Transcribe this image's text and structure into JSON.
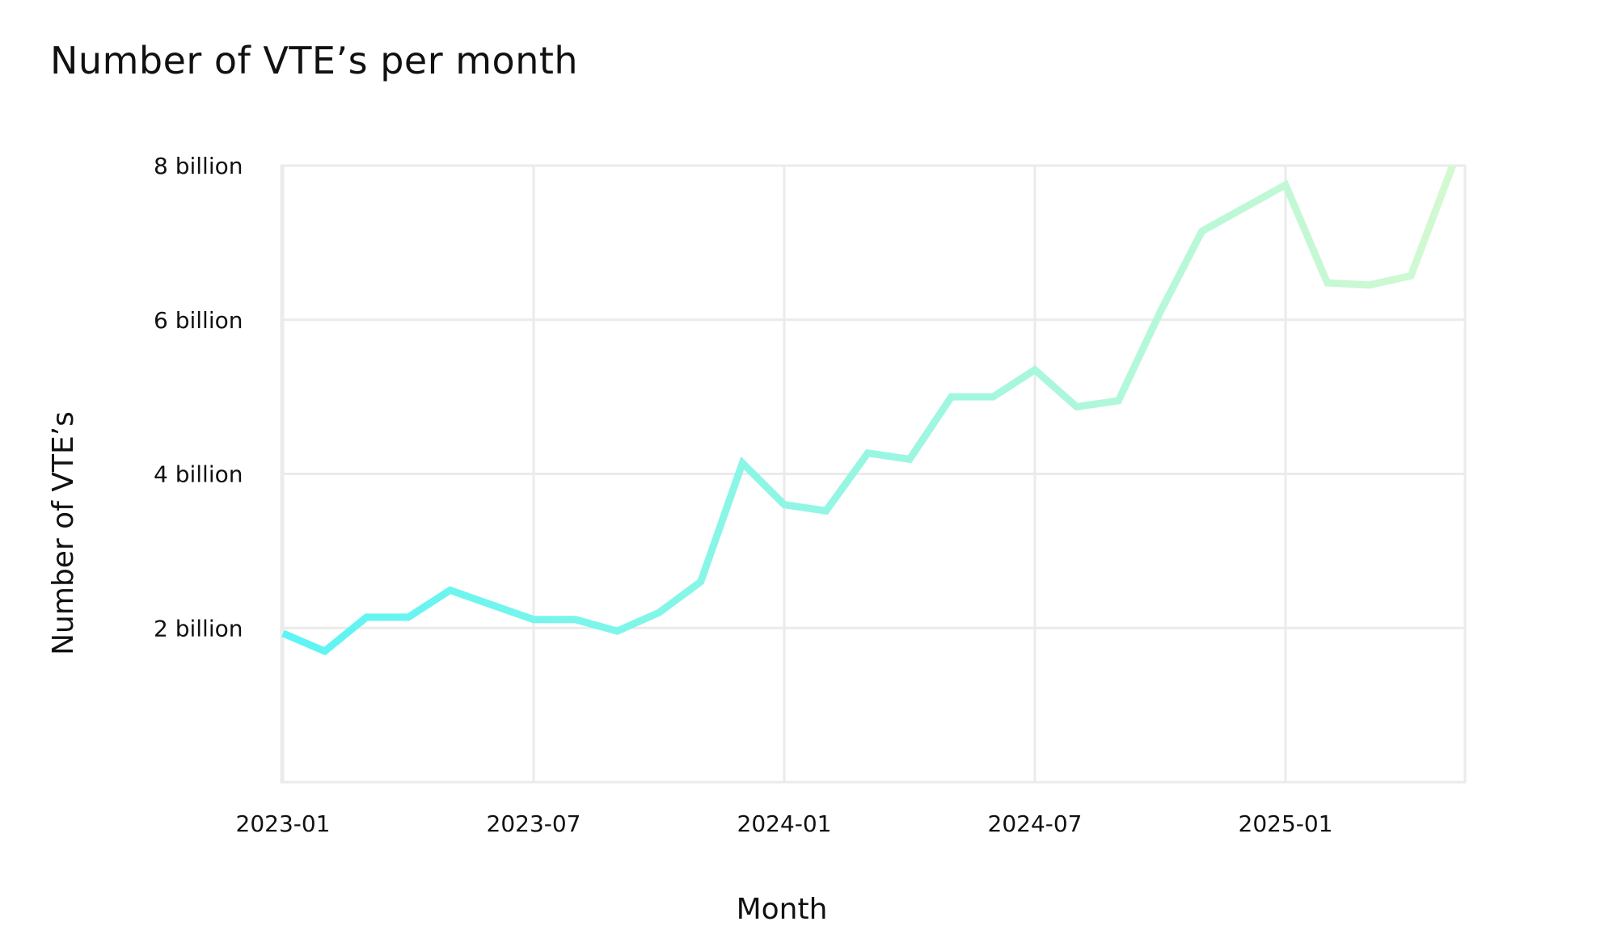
{
  "chart_data": {
    "type": "line",
    "title": "Number of VTE’s per month",
    "xlabel": "Month",
    "ylabel": "Number of VTE’s",
    "x_tick_labels": [
      "2023-01",
      "2023-07",
      "2024-01",
      "2024-07",
      "2025-01"
    ],
    "y_tick_labels": [
      "2 billion",
      "4 billion",
      "6 billion",
      "8 billion"
    ],
    "y_tick_values": [
      2000000000,
      4000000000,
      6000000000,
      8000000000
    ],
    "ylim": [
      0,
      8000000000
    ],
    "xlim": [
      "2023-01",
      "2025-05"
    ],
    "grid": true,
    "legend": "none",
    "colors": {
      "line_start": "#5cf4f4",
      "line_end": "#d4f9d0",
      "grid": "#ebebeb"
    },
    "series": [
      {
        "x": [
          "2023-01",
          "2023-02",
          "2023-03",
          "2023-04",
          "2023-05",
          "2023-06",
          "2023-07",
          "2023-08",
          "2023-09",
          "2023-10",
          "2023-11",
          "2023-12",
          "2024-01",
          "2024-02",
          "2024-03",
          "2024-04",
          "2024-05",
          "2024-06",
          "2024-07",
          "2024-08",
          "2024-09",
          "2024-10",
          "2024-11",
          "2024-12",
          "2025-01",
          "2025-02",
          "2025-03",
          "2025-04",
          "2025-05"
        ],
        "values": [
          1930000000,
          1700000000,
          2140000000,
          2140000000,
          2490000000,
          2300000000,
          2110000000,
          2110000000,
          1960000000,
          2200000000,
          2600000000,
          4140000000,
          3600000000,
          3520000000,
          4270000000,
          4190000000,
          5000000000,
          5000000000,
          5350000000,
          4870000000,
          4950000000,
          6100000000,
          7150000000,
          7450000000,
          7750000000,
          6480000000,
          6450000000,
          6570000000,
          8000000000
        ]
      }
    ]
  }
}
